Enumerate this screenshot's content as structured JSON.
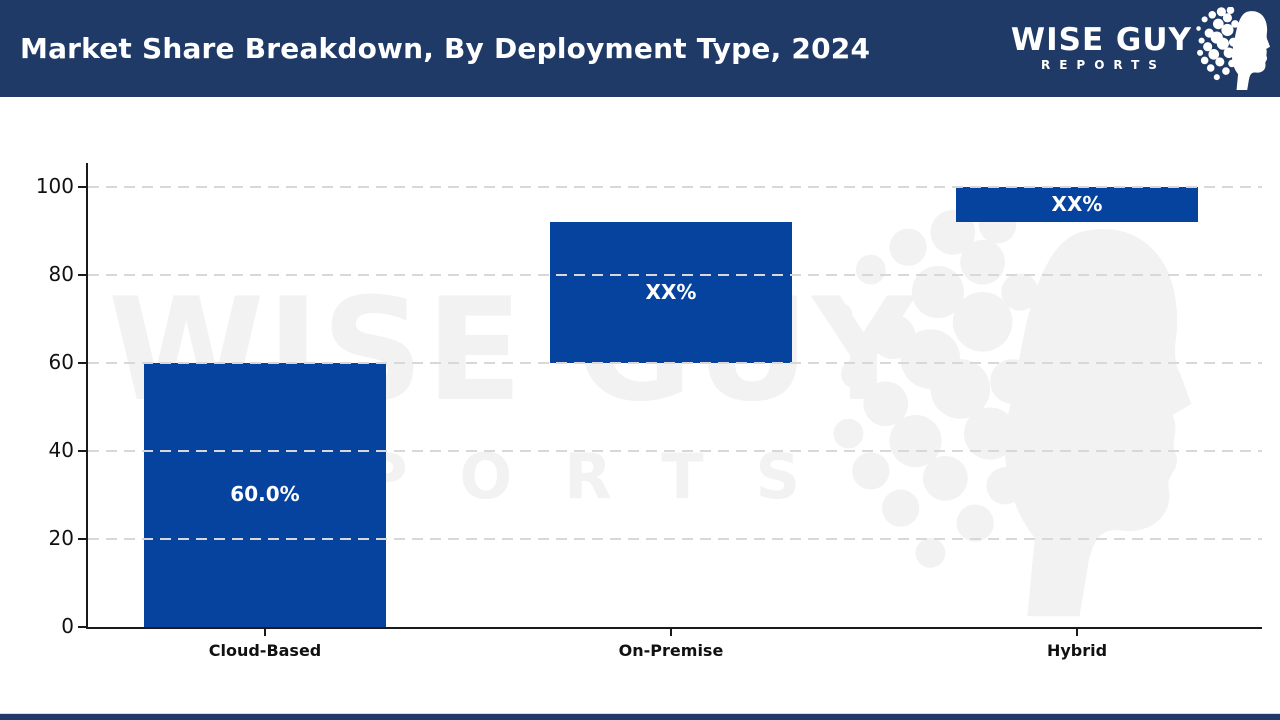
{
  "header": {
    "title": "Market Share Breakdown, By Deployment Type, 2024",
    "logo": {
      "line1": "WISE GUY",
      "line2": "REPORTS"
    }
  },
  "watermark": {
    "line1": "WISE GUY",
    "line2": "REPORTS"
  },
  "colors": {
    "header_bg": "#203A67",
    "bar": "#05439E",
    "grid": "#D8D8D8",
    "axis": "#1A1A1A",
    "bar_label": "#FFFFFF",
    "watermark": "#F2F2F3"
  },
  "chart_data": {
    "type": "bar",
    "subtype": "waterfall",
    "title": "Market Share Breakdown, By Deployment Type, 2024",
    "categories": [
      "Cloud-Based",
      "On-Premise",
      "Hybrid"
    ],
    "segments": [
      {
        "category": "Cloud-Based",
        "start": 0,
        "end": 60,
        "value": 60,
        "label": "60.0%"
      },
      {
        "category": "On-Premise",
        "start": 60,
        "end": 92,
        "value": 32,
        "label": "XX%"
      },
      {
        "category": "Hybrid",
        "start": 92,
        "end": 100,
        "value": 8,
        "label": "XX%"
      }
    ],
    "ylim": [
      0,
      100
    ],
    "yticks": [
      0,
      20,
      40,
      60,
      80,
      100
    ],
    "xlabel": "",
    "ylabel": "",
    "grid": "horizontal dashed, drawn over bars",
    "legend": "none"
  }
}
